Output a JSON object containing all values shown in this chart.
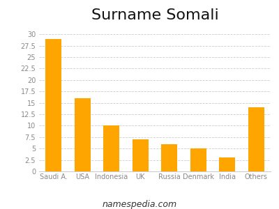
{
  "title": "Surname Somali",
  "categories": [
    "Saudi A.",
    "USA",
    "Indonesia",
    "UK",
    "Russia",
    "Denmark",
    "India",
    "Others"
  ],
  "values": [
    29,
    16,
    10,
    7,
    6,
    5,
    3,
    14
  ],
  "bar_color": "#FFA500",
  "ylim": [
    0,
    32
  ],
  "yticks": [
    0,
    2.5,
    5,
    7.5,
    10,
    12.5,
    15,
    17.5,
    20,
    22.5,
    25,
    27.5,
    30
  ],
  "grid_color": "#cccccc",
  "background_color": "#ffffff",
  "title_fontsize": 16,
  "tick_fontsize": 7,
  "footer_text": "namespedia.com",
  "footer_fontsize": 9
}
